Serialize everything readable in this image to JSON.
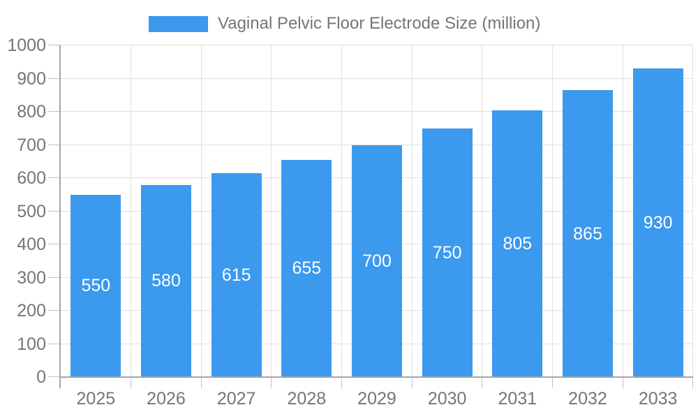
{
  "chart_data": {
    "type": "bar",
    "title": "Vaginal Pelvic Floor Electrode Size (million)",
    "legend_entries": [
      "Vaginal Pelvic Floor Electrode Size (million)"
    ],
    "legend_position": "top",
    "categories": [
      "2025",
      "2026",
      "2027",
      "2028",
      "2029",
      "2030",
      "2031",
      "2032",
      "2033"
    ],
    "values": [
      550,
      580,
      615,
      655,
      700,
      750,
      805,
      865,
      930
    ],
    "xlabel": "",
    "ylabel": "",
    "ylim": [
      0,
      1000
    ],
    "ytick_step": 100,
    "ytick_labels": [
      "0",
      "100",
      "200",
      "300",
      "400",
      "500",
      "600",
      "700",
      "800",
      "900",
      "1000"
    ],
    "grid": true,
    "value_label_position": "inside-center",
    "colors": {
      "bar": "#3B99EE",
      "value_label": "#FFFFFF",
      "axis_text": "#757575",
      "gridline": "#E0E0E0",
      "tick": "#C2C2C2",
      "axis_line": "#A6A6A6",
      "background": "#FFFFFF"
    }
  }
}
